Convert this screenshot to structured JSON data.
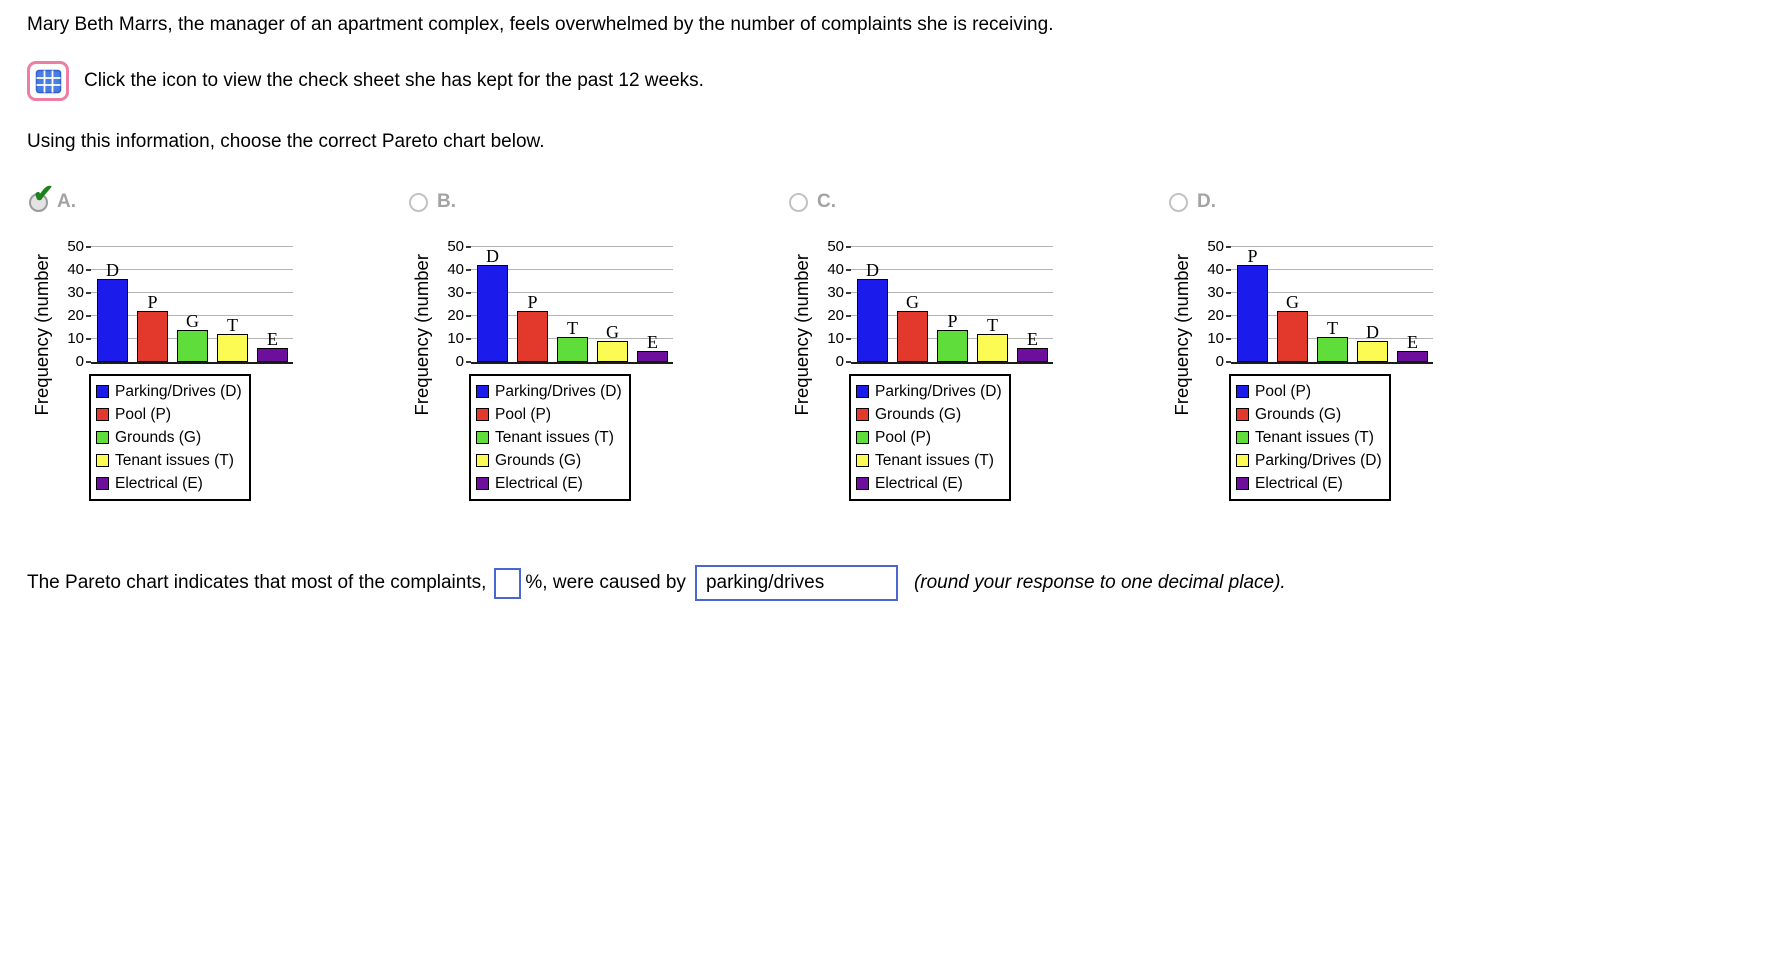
{
  "intro": "Mary Beth Marrs, the manager of an apartment complex, feels overwhelmed by the number of complaints she is receiving.",
  "icon_instruction": "Click the icon to view the check sheet she has kept for the past 12 weeks.",
  "chart_instruction": "Using this information, choose the correct Pareto chart below.",
  "options": [
    {
      "label": "A.",
      "selected": true
    },
    {
      "label": "B.",
      "selected": false
    },
    {
      "label": "C.",
      "selected": false
    },
    {
      "label": "D.",
      "selected": false
    }
  ],
  "chart_data": [
    {
      "type": "bar",
      "option": "A",
      "ylabel": "Frequency (number",
      "ylim": [
        0,
        50
      ],
      "yticks": [
        0,
        10,
        20,
        30,
        40,
        50
      ],
      "grid": true,
      "bars": [
        {
          "letter": "D",
          "value": 36,
          "color": "#1b1beb"
        },
        {
          "letter": "P",
          "value": 22,
          "color": "#e3392c"
        },
        {
          "letter": "G",
          "value": 14,
          "color": "#5fdd3a"
        },
        {
          "letter": "T",
          "value": 12,
          "color": "#fbfb54"
        },
        {
          "letter": "E",
          "value": 6,
          "color": "#6d0f9c"
        }
      ],
      "legend": [
        {
          "label": "Parking/Drives (D)",
          "color": "#1b1beb"
        },
        {
          "label": "Pool (P)",
          "color": "#e3392c"
        },
        {
          "label": "Grounds (G)",
          "color": "#5fdd3a"
        },
        {
          "label": "Tenant issues (T)",
          "color": "#fbfb54"
        },
        {
          "label": "Electrical (E)",
          "color": "#6d0f9c"
        }
      ]
    },
    {
      "type": "bar",
      "option": "B",
      "ylabel": "Frequency (number",
      "ylim": [
        0,
        50
      ],
      "yticks": [
        0,
        10,
        20,
        30,
        40,
        50
      ],
      "grid": true,
      "bars": [
        {
          "letter": "D",
          "value": 42,
          "color": "#1b1beb"
        },
        {
          "letter": "P",
          "value": 22,
          "color": "#e3392c"
        },
        {
          "letter": "T",
          "value": 11,
          "color": "#5fdd3a"
        },
        {
          "letter": "G",
          "value": 9,
          "color": "#fbfb54"
        },
        {
          "letter": "E",
          "value": 5,
          "color": "#6d0f9c"
        }
      ],
      "legend": [
        {
          "label": "Parking/Drives (D)",
          "color": "#1b1beb"
        },
        {
          "label": "Pool (P)",
          "color": "#e3392c"
        },
        {
          "label": "Tenant issues (T)",
          "color": "#5fdd3a"
        },
        {
          "label": "Grounds (G)",
          "color": "#fbfb54"
        },
        {
          "label": "Electrical (E)",
          "color": "#6d0f9c"
        }
      ]
    },
    {
      "type": "bar",
      "option": "C",
      "ylabel": "Frequency (number",
      "ylim": [
        0,
        50
      ],
      "yticks": [
        0,
        10,
        20,
        30,
        40,
        50
      ],
      "grid": true,
      "bars": [
        {
          "letter": "D",
          "value": 36,
          "color": "#1b1beb"
        },
        {
          "letter": "G",
          "value": 22,
          "color": "#e3392c"
        },
        {
          "letter": "P",
          "value": 14,
          "color": "#5fdd3a"
        },
        {
          "letter": "T",
          "value": 12,
          "color": "#fbfb54"
        },
        {
          "letter": "E",
          "value": 6,
          "color": "#6d0f9c"
        }
      ],
      "legend": [
        {
          "label": "Parking/Drives (D)",
          "color": "#1b1beb"
        },
        {
          "label": "Grounds (G)",
          "color": "#e3392c"
        },
        {
          "label": "Pool (P)",
          "color": "#5fdd3a"
        },
        {
          "label": "Tenant issues (T)",
          "color": "#fbfb54"
        },
        {
          "label": "Electrical (E)",
          "color": "#6d0f9c"
        }
      ]
    },
    {
      "type": "bar",
      "option": "D",
      "ylabel": "Frequency (number",
      "ylim": [
        0,
        50
      ],
      "yticks": [
        0,
        10,
        20,
        30,
        40,
        50
      ],
      "grid": true,
      "bars": [
        {
          "letter": "P",
          "value": 42,
          "color": "#1b1beb"
        },
        {
          "letter": "G",
          "value": 22,
          "color": "#e3392c"
        },
        {
          "letter": "T",
          "value": 11,
          "color": "#5fdd3a"
        },
        {
          "letter": "D",
          "value": 9,
          "color": "#fbfb54"
        },
        {
          "letter": "E",
          "value": 5,
          "color": "#6d0f9c"
        }
      ],
      "legend": [
        {
          "label": "Pool (P)",
          "color": "#1b1beb"
        },
        {
          "label": "Grounds (G)",
          "color": "#e3392c"
        },
        {
          "label": "Tenant issues (T)",
          "color": "#5fdd3a"
        },
        {
          "label": "Parking/Drives (D)",
          "color": "#fbfb54"
        },
        {
          "label": "Electrical (E)",
          "color": "#6d0f9c"
        }
      ]
    }
  ],
  "answer_line": {
    "prefix": "The Pareto chart indicates that most of the complaints,",
    "percent_value": "",
    "middle": "%, were caused by",
    "cause_value": "parking/drives",
    "note": "(round your response to one decimal place)."
  },
  "colors": {
    "bar_blue": "#1b1beb",
    "bar_red": "#e3392c",
    "bar_green": "#5fdd3a",
    "bar_yellow": "#fbfb54",
    "bar_purple": "#6d0f9c",
    "input_border": "#4a67cf",
    "check_green": "#1c821c",
    "option_label_gray": "#a3a3a3",
    "icon_border_pink": "#ee7da2",
    "icon_blue": "#4a7de0"
  }
}
